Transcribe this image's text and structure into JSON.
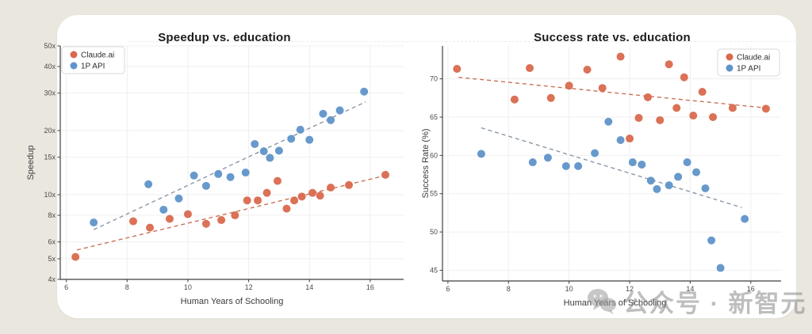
{
  "page": {
    "background": "#eae7df",
    "card_color": "#ffffff"
  },
  "watermark": {
    "text": "公众号 · 新智元",
    "icon": "wechat-icon",
    "color": "#9a9a9a"
  },
  "chart_data": [
    {
      "type": "scatter",
      "title": "Speedup vs. education",
      "xlabel": "Human Years of Schooling",
      "ylabel": "Speedup",
      "x_ticks": [
        6,
        8,
        10,
        12,
        14,
        16
      ],
      "xlim": [
        5.8,
        17.1
      ],
      "y_scale": "log",
      "ylim": [
        4,
        50
      ],
      "y_ticks": [
        4,
        5,
        6,
        8,
        10,
        15,
        20,
        30,
        40,
        50
      ],
      "y_tick_labels": [
        "4x",
        "5x",
        "6x",
        "8x",
        "10x",
        "15x",
        "20x",
        "30x",
        "40x",
        "50x"
      ],
      "grid": true,
      "legend_position": "top-left",
      "series": [
        {
          "name": "Claude.ai",
          "color": "#d9694d",
          "points": [
            [
              6.3,
              5.1
            ],
            [
              8.2,
              7.5
            ],
            [
              8.75,
              7.0
            ],
            [
              9.4,
              7.7
            ],
            [
              10.0,
              8.1
            ],
            [
              10.6,
              7.3
            ],
            [
              11.1,
              7.6
            ],
            [
              11.55,
              8.0
            ],
            [
              11.95,
              9.4
            ],
            [
              12.3,
              9.4
            ],
            [
              12.6,
              10.2
            ],
            [
              12.95,
              11.6
            ],
            [
              13.25,
              8.6
            ],
            [
              13.5,
              9.4
            ],
            [
              13.75,
              9.8
            ],
            [
              14.1,
              10.2
            ],
            [
              14.35,
              9.9
            ],
            [
              14.7,
              10.8
            ],
            [
              15.3,
              11.1
            ],
            [
              16.5,
              12.4
            ]
          ],
          "trendline": {
            "start": [
              6.35,
              5.5
            ],
            "end": [
              16.6,
              12.4
            ],
            "color": "#c97257",
            "style": "dashed"
          }
        },
        {
          "name": "1P API",
          "color": "#5f94c9",
          "points": [
            [
              6.9,
              7.4
            ],
            [
              8.7,
              11.2
            ],
            [
              9.2,
              8.5
            ],
            [
              9.7,
              9.6
            ],
            [
              10.2,
              12.3
            ],
            [
              10.6,
              11.0
            ],
            [
              11.0,
              12.5
            ],
            [
              11.4,
              12.1
            ],
            [
              11.9,
              12.7
            ],
            [
              12.2,
              17.3
            ],
            [
              12.5,
              16.0
            ],
            [
              12.7,
              14.9
            ],
            [
              13.0,
              16.1
            ],
            [
              13.4,
              18.3
            ],
            [
              13.7,
              20.2
            ],
            [
              14.0,
              18.1
            ],
            [
              14.45,
              24.0
            ],
            [
              14.7,
              22.4
            ],
            [
              15.0,
              24.9
            ],
            [
              15.8,
              30.5
            ]
          ],
          "trendline": {
            "start": [
              6.9,
              6.85
            ],
            "end": [
              15.85,
              27.3
            ],
            "color": "#8a97a6",
            "style": "dashed"
          }
        }
      ]
    },
    {
      "type": "scatter",
      "title": "Success rate vs. education",
      "xlabel": "Human Years of Schooling",
      "ylabel": "Success Rate (%)",
      "x_ticks": [
        6,
        8,
        10,
        12,
        14,
        16
      ],
      "xlim": [
        5.82,
        17.0
      ],
      "y_scale": "linear",
      "ylim": [
        43.6,
        74.3
      ],
      "y_ticks": [
        45,
        50,
        55,
        60,
        65,
        70
      ],
      "y_tick_labels": [
        "45",
        "50",
        "55",
        "60",
        "65",
        "70"
      ],
      "grid": true,
      "legend_position": "top-right",
      "series": [
        {
          "name": "Claude.ai",
          "color": "#d9694d",
          "points": [
            [
              6.3,
              71.3
            ],
            [
              8.2,
              67.3
            ],
            [
              8.7,
              71.4
            ],
            [
              9.4,
              67.5
            ],
            [
              10.0,
              69.1
            ],
            [
              10.6,
              71.2
            ],
            [
              11.1,
              68.8
            ],
            [
              11.7,
              72.9
            ],
            [
              12.0,
              62.2
            ],
            [
              12.3,
              64.9
            ],
            [
              12.6,
              67.6
            ],
            [
              13.0,
              64.6
            ],
            [
              13.3,
              71.9
            ],
            [
              13.55,
              66.2
            ],
            [
              13.8,
              70.2
            ],
            [
              14.1,
              65.2
            ],
            [
              14.4,
              68.3
            ],
            [
              14.75,
              65.0
            ],
            [
              15.4,
              66.2
            ],
            [
              16.5,
              66.1
            ]
          ],
          "trendline": {
            "start": [
              6.35,
              70.2
            ],
            "end": [
              16.5,
              66.2
            ],
            "color": "#c97257",
            "style": "dashed"
          }
        },
        {
          "name": "1P API",
          "color": "#5f94c9",
          "points": [
            [
              7.1,
              60.2
            ],
            [
              8.8,
              59.1
            ],
            [
              9.3,
              59.7
            ],
            [
              9.9,
              58.6
            ],
            [
              10.3,
              58.6
            ],
            [
              10.85,
              60.3
            ],
            [
              11.3,
              64.4
            ],
            [
              11.7,
              62.0
            ],
            [
              12.1,
              59.1
            ],
            [
              12.4,
              58.8
            ],
            [
              12.7,
              56.7
            ],
            [
              12.9,
              55.6
            ],
            [
              13.3,
              56.1
            ],
            [
              13.6,
              57.2
            ],
            [
              13.9,
              59.1
            ],
            [
              14.2,
              57.8
            ],
            [
              14.5,
              55.7
            ],
            [
              14.7,
              48.9
            ],
            [
              15.0,
              45.3
            ],
            [
              15.8,
              51.7
            ]
          ],
          "trendline": {
            "start": [
              7.1,
              63.6
            ],
            "end": [
              15.7,
              53.2
            ],
            "color": "#8a97a6",
            "style": "dashed"
          }
        }
      ]
    }
  ]
}
